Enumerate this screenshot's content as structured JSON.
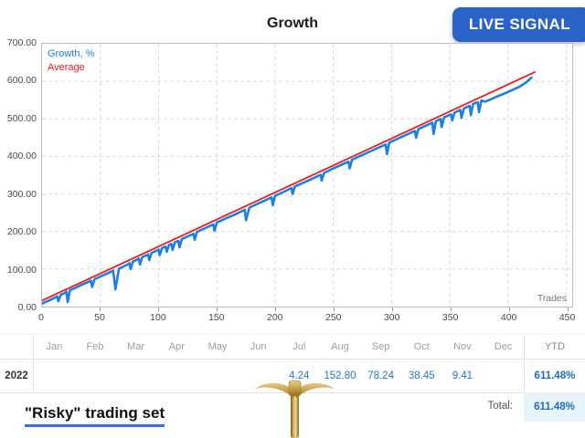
{
  "header": {
    "title": "Growth",
    "live_signal_label": "LIVE SIGNAL"
  },
  "colors": {
    "growth_line": "#1d7fe3",
    "average_line": "#ea1c1c",
    "button_bg": "#2a63c8",
    "value_text": "#2678c8",
    "ytd_total_bg": "#e8f4f9",
    "caption_underline": "#3a70d6"
  },
  "chart_data": {
    "type": "line",
    "title": "Growth",
    "xlabel": "Trades",
    "ylabel": "",
    "xlim": [
      0,
      455
    ],
    "ylim": [
      0,
      700
    ],
    "x_ticks": [
      0,
      50,
      100,
      150,
      200,
      250,
      300,
      350,
      400,
      450
    ],
    "y_ticks": [
      0,
      100,
      200,
      300,
      400,
      500,
      600,
      700
    ],
    "y_tick_labels": [
      "0.00",
      "100.00",
      "200.00",
      "300.00",
      "400.00",
      "500.00",
      "600.00",
      "700.00"
    ],
    "grid": "dashed",
    "legend_position": "top-left",
    "series": [
      {
        "name": "Growth, %",
        "color": "#1d7fe3",
        "width": 2.6,
        "points": [
          [
            0,
            8
          ],
          [
            5,
            15
          ],
          [
            10,
            22
          ],
          [
            13,
            27
          ],
          [
            14,
            14
          ],
          [
            16,
            31
          ],
          [
            20,
            37
          ],
          [
            21,
            40
          ],
          [
            22,
            12
          ],
          [
            24,
            44
          ],
          [
            28,
            49
          ],
          [
            34,
            58
          ],
          [
            40,
            66
          ],
          [
            42,
            69
          ],
          [
            43,
            52
          ],
          [
            45,
            73
          ],
          [
            50,
            80
          ],
          [
            55,
            87
          ],
          [
            60,
            94
          ],
          [
            61,
            96
          ],
          [
            63,
            46
          ],
          [
            66,
            101
          ],
          [
            70,
            107
          ],
          [
            74,
            113
          ],
          [
            75,
            116
          ],
          [
            76,
            100
          ],
          [
            78,
            120
          ],
          [
            82,
            126
          ],
          [
            83,
            128
          ],
          [
            84,
            112
          ],
          [
            86,
            132
          ],
          [
            90,
            137
          ],
          [
            91,
            139
          ],
          [
            92,
            124
          ],
          [
            94,
            143
          ],
          [
            99,
            150
          ],
          [
            100,
            152
          ],
          [
            101,
            137
          ],
          [
            103,
            156
          ],
          [
            106,
            160
          ],
          [
            107,
            146
          ],
          [
            109,
            164
          ],
          [
            111,
            167
          ],
          [
            112,
            151
          ],
          [
            114,
            171
          ],
          [
            117,
            175
          ],
          [
            118,
            158
          ],
          [
            120,
            180
          ],
          [
            125,
            187
          ],
          [
            130,
            194
          ],
          [
            131,
            178
          ],
          [
            133,
            199
          ],
          [
            140,
            209
          ],
          [
            147,
            219
          ],
          [
            148,
            202
          ],
          [
            150,
            224
          ],
          [
            155,
            231
          ],
          [
            160,
            238
          ],
          [
            168,
            249
          ],
          [
            174,
            258
          ],
          [
            175,
            230
          ],
          [
            178,
            264
          ],
          [
            185,
            274
          ],
          [
            190,
            281
          ],
          [
            197,
            291
          ],
          [
            198,
            270
          ],
          [
            200,
            295
          ],
          [
            207,
            305
          ],
          [
            214,
            316
          ],
          [
            215,
            300
          ],
          [
            217,
            320
          ],
          [
            225,
            331
          ],
          [
            230,
            338
          ],
          [
            239,
            351
          ],
          [
            240,
            336
          ],
          [
            242,
            356
          ],
          [
            250,
            368
          ],
          [
            260,
            382
          ],
          [
            263,
            386
          ],
          [
            264,
            368
          ],
          [
            266,
            391
          ],
          [
            275,
            404
          ],
          [
            285,
            418
          ],
          [
            295,
            432
          ],
          [
            296,
            406
          ],
          [
            298,
            437
          ],
          [
            305,
            447
          ],
          [
            315,
            461
          ],
          [
            320,
            468
          ],
          [
            321,
            450
          ],
          [
            323,
            473
          ],
          [
            330,
            483
          ],
          [
            335,
            490
          ],
          [
            336,
            460
          ],
          [
            338,
            494
          ],
          [
            342,
            500
          ],
          [
            343,
            478
          ],
          [
            345,
            504
          ],
          [
            351,
            512
          ],
          [
            352,
            496
          ],
          [
            354,
            517
          ],
          [
            359,
            524
          ],
          [
            360,
            503
          ],
          [
            362,
            528
          ],
          [
            367,
            535
          ],
          [
            368,
            510
          ],
          [
            370,
            540
          ],
          [
            374,
            545
          ],
          [
            375,
            518
          ],
          [
            377,
            549
          ],
          [
            380,
            546
          ],
          [
            385,
            552
          ],
          [
            390,
            559
          ],
          [
            395,
            565
          ],
          [
            400,
            572
          ],
          [
            405,
            579
          ],
          [
            410,
            586
          ],
          [
            415,
            596
          ],
          [
            420,
            610
          ]
        ]
      },
      {
        "name": "Average",
        "color": "#ea1c1c",
        "width": 1.8,
        "points": [
          [
            0,
            16
          ],
          [
            423,
            625
          ]
        ]
      }
    ]
  },
  "table": {
    "columns": [
      "Jan",
      "Feb",
      "Mar",
      "Apr",
      "May",
      "Jun",
      "Jul",
      "Aug",
      "Sep",
      "Oct",
      "Nov",
      "Dec",
      "YTD"
    ],
    "rows": [
      {
        "year": "2022",
        "values": [
          "",
          "",
          "",
          "",
          "",
          "",
          "4.24",
          "152.80",
          "78.24",
          "38.45",
          "9.41",
          ""
        ],
        "ytd": "611.48%"
      }
    ]
  },
  "total": {
    "label": "Total:",
    "value": "611.48%"
  },
  "footer": {
    "caption": "\"Risky\" trading set"
  }
}
